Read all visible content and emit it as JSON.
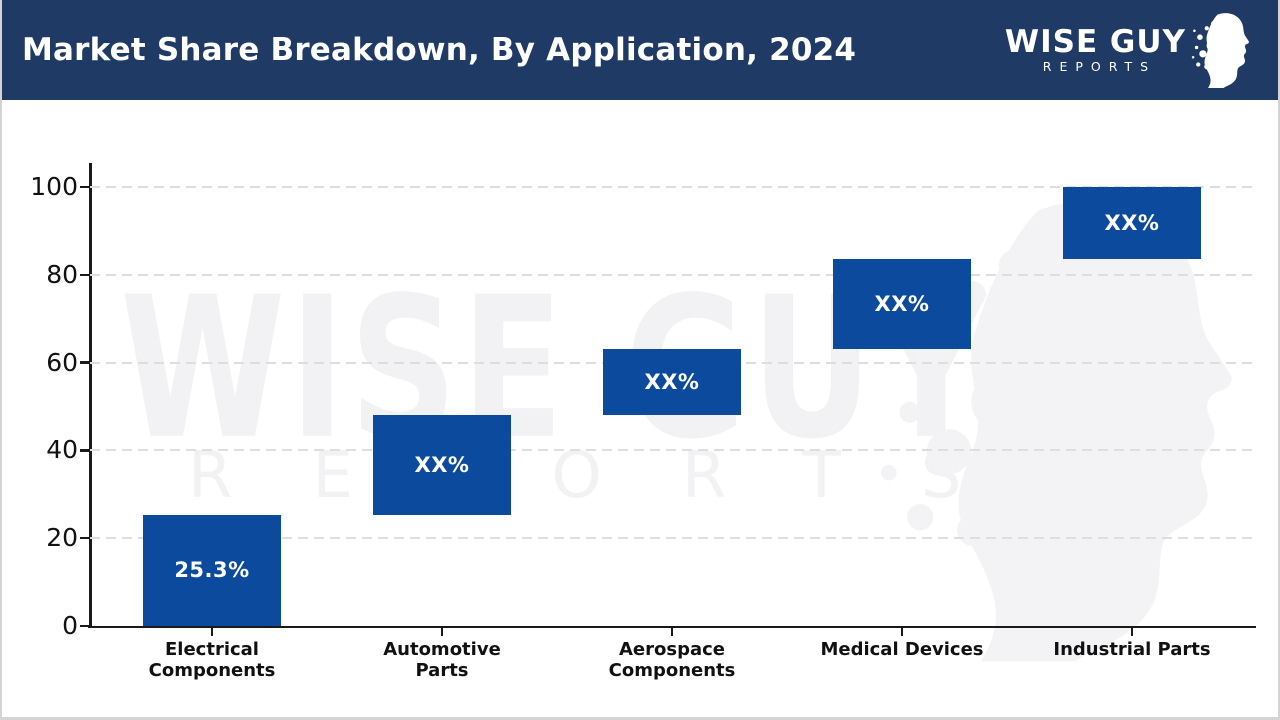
{
  "header": {
    "title": "Market Share Breakdown, By Application, 2024",
    "logo": {
      "line1": "WISE GUY",
      "line2": "REPORTS"
    }
  },
  "watermark": {
    "line1": "WISE GUY",
    "line2": "REPORTS"
  },
  "colors": {
    "header_bg": "#1f3a64",
    "bar": "#0c4a9e",
    "bar_label": "#ffffff",
    "watermark": "#f2f2f4",
    "gridline": "#dedede",
    "axis": "#1a1a1a"
  },
  "chart_data": {
    "type": "bar",
    "subtype": "waterfall",
    "title": "Market Share Breakdown, By Application, 2024",
    "xlabel": "",
    "ylabel": "",
    "ylim": [
      0,
      105
    ],
    "y_ticks": [
      0,
      20,
      40,
      60,
      80,
      100
    ],
    "grid": "dashed-horizontal",
    "legend": "none",
    "categories": [
      "Electrical Components",
      "Automotive Parts",
      "Aerospace Components",
      "Medical Devices",
      "Industrial Parts"
    ],
    "segments": [
      {
        "category": "Electrical Components",
        "start": 0,
        "end": 25.3,
        "label": "25.3%"
      },
      {
        "category": "Automotive Parts",
        "start": 25.3,
        "end": 48.1,
        "label": "XX%"
      },
      {
        "category": "Aerospace Components",
        "start": 48.1,
        "end": 63.1,
        "label": "XX%"
      },
      {
        "category": "Medical Devices",
        "start": 63.1,
        "end": 83.6,
        "label": "XX%"
      },
      {
        "category": "Industrial Parts",
        "start": 83.6,
        "end": 100,
        "label": "XX%"
      }
    ]
  }
}
